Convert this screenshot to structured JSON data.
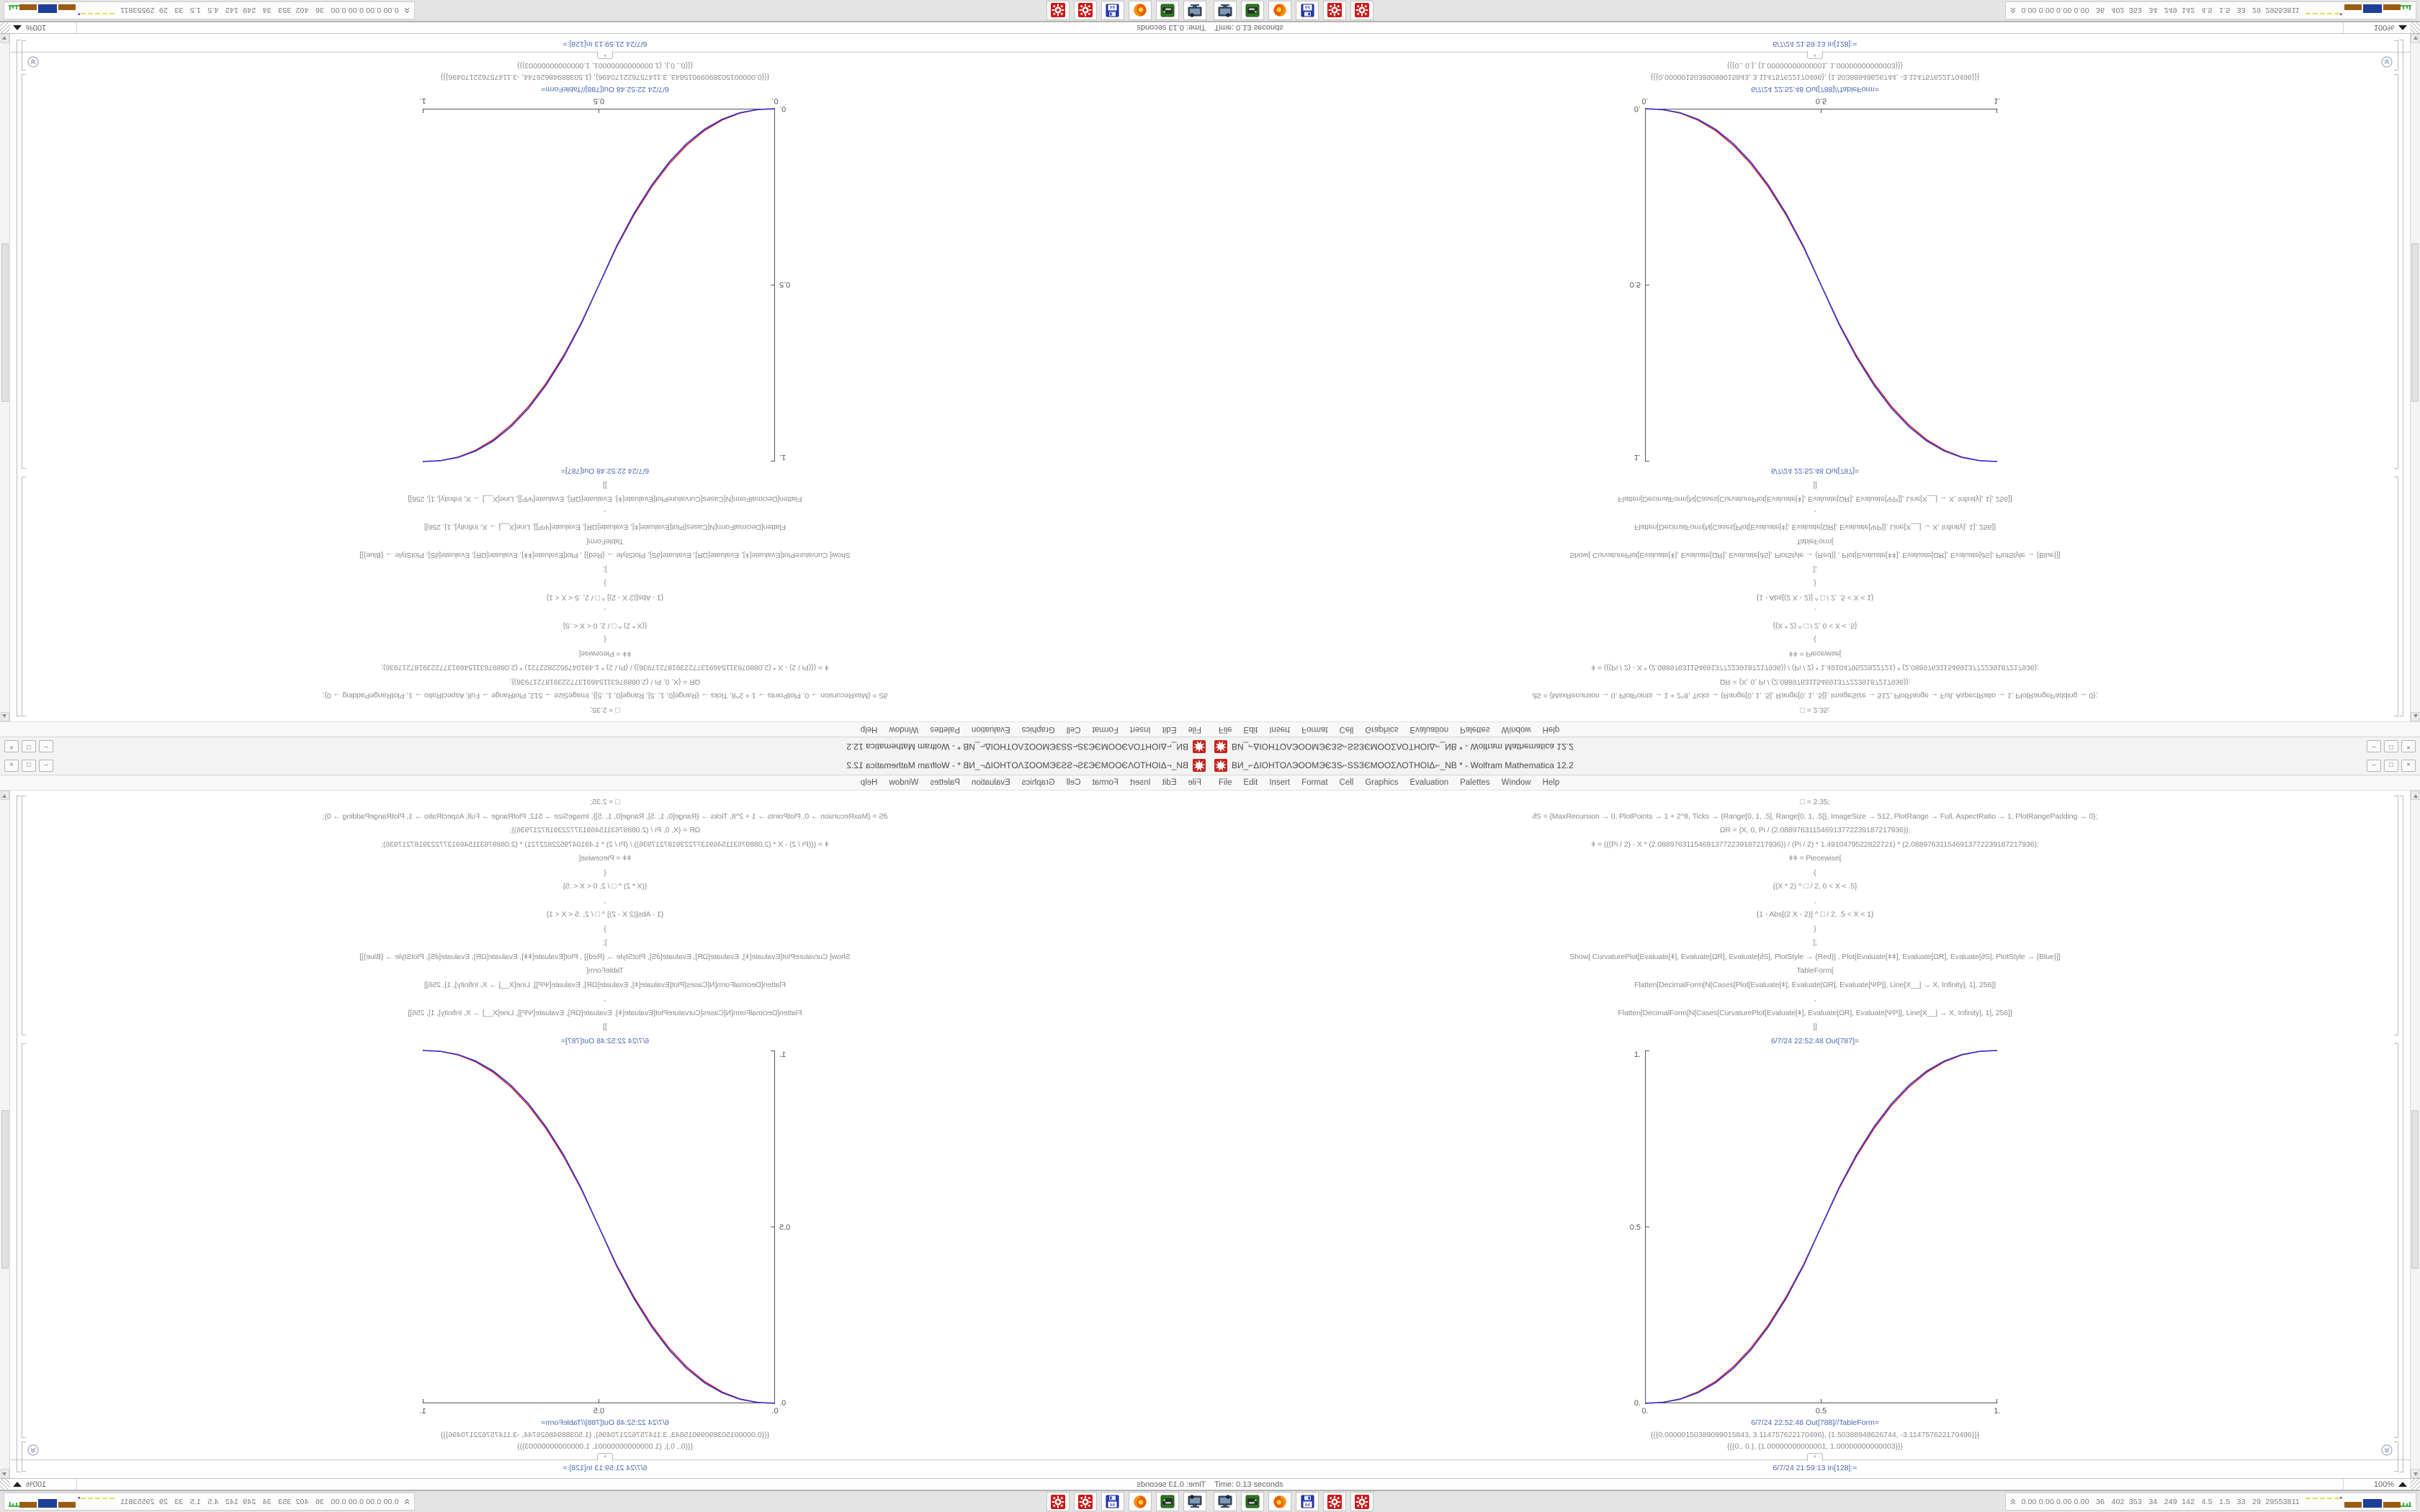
{
  "window": {
    "title": "ВИ_⌐ΔΙΟΗΤΟΛЭΟΟΜЭЄЗЅ⌐ЅЅЗЄΜΟΟΣΛΟΤΗΟΙΔ⌐_NB * - Wolfram Mathematica 12.2",
    "menu": [
      "File",
      "Edit",
      "Insert",
      "Format",
      "Cell",
      "Graphics",
      "Evaluation",
      "Palettes",
      "Window",
      "Help"
    ],
    "buttons": {
      "minimize": "–",
      "maximize": "□",
      "close": "×"
    },
    "status_time": "Time: 0.13 seconds",
    "zoom_level": "100%"
  },
  "notebook": {
    "input_lines": [
      "□ = 2.35;",
      "∂S = {MaxRecursion → 0, PlotPoints → 1 + 2^8, Ticks → {Range[0, 1, .5], Range[0, 1, .5]}, ImageSize → 512, PlotRange → Full, AspectRatio → 1, PlotRangePadding → 0};",
      "ΩR = {X, 0, Pi / (2.088976311546913772239187217936)};",
      "ǂ = (((Pi / 2) - X * (2.088976311546913772239187217936)) / (Pi / 2) * 1.4910479522822721) * (2.088976311546913772239187217936);",
      "ǂǂ = Piecewise[",
      "{",
      "{(X * 2) ^ □ / 2, 0 < X < .5}",
      ",",
      "{1 - Abs[(2 X - 2)] ^ □ / 2, .5 < X < 1}",
      "}",
      "];",
      "Show[  CurvaturePlot[Evaluate[ǂ], Evaluate[ΩR], Evaluate[∂S], PlotStyle → {Red}]  ,  Plot[Evaluate[ǂǂ], Evaluate[ΩR], Evaluate[∂S], PlotStyle → {Blue}]]",
      "TableForm[",
      "Flatten[DecimalForm[N[Cases[Plot[Evaluate[ǂ], Evaluate[ΩR], Evaluate[ΨΡ]], Line[X__] → X, Infinity], 1], 256]]",
      ",",
      "Flatten[DecimalForm[N[Cases[CurvaturePlot[Evaluate[ǂ], Evaluate[ΩR], Evaluate[ΨΡ]], Line[X__] → X, Infinity], 1], 256]]",
      "]]"
    ],
    "out_label_plot": "6/7/24 22:52:48 Out[787]=",
    "out_label_table": "6/7/24 22:52:48 Out[788]//TableForm=",
    "table_rows": [
      "{{{0.00000150389099015843, 3.114757622170496}, {1.50388948626744, -3.114757622170496}}}",
      "{{{0., 0.}, {1.00000000000001, 1.00000000000003}}}"
    ],
    "insert_plus": "+",
    "next_in_label": "6/7/24 21:59:13 In[128]:="
  },
  "taskbar": {
    "icons": [
      "screenshot-monitor",
      "disk-drive",
      "firefox",
      "floppy-64",
      "kernel-gear",
      "kernel-gear"
    ],
    "tray_stats": "0.00 0.00 0.00 0.00   36   402  353   34   249  142   4.5   1.5   33   29  29553811"
  },
  "colors": {
    "red_curve": "#d42626",
    "blue_curve": "#2c2cd4",
    "cell_label_blue": "#4a68b4",
    "mathematica_red": "#c4241d"
  },
  "chart_data": {
    "type": "line",
    "title": "",
    "xlabel": "",
    "ylabel": "",
    "xlim": [
      0,
      1
    ],
    "ylim": [
      0,
      1
    ],
    "grid": false,
    "legend": "none",
    "xtick_labels": [
      "0.",
      "0.5",
      "1."
    ],
    "ytick_labels": [
      "0.",
      "0.5",
      "1."
    ],
    "x": [
      0,
      0.05,
      0.1,
      0.15,
      0.2,
      0.25,
      0.3,
      0.35,
      0.4,
      0.45,
      0.5,
      0.55,
      0.6,
      0.65,
      0.7,
      0.75,
      0.8,
      0.85,
      0.9,
      0.95,
      1
    ],
    "series": [
      {
        "name": "CurvaturePlot (Red)",
        "color": "#d42626",
        "y": [
          0,
          0.0026,
          0.0127,
          0.0321,
          0.0619,
          0.103,
          0.156,
          0.2217,
          0.3007,
          0.3932,
          0.5,
          0.6068,
          0.6993,
          0.7783,
          0.844,
          0.897,
          0.9381,
          0.9679,
          0.9873,
          0.9974,
          1
        ]
      },
      {
        "name": "Plot (Blue)",
        "color": "#2c2cd4",
        "y": [
          0,
          0.0022,
          0.0114,
          0.0295,
          0.058,
          0.0981,
          0.1505,
          0.2162,
          0.2959,
          0.3903,
          0.5,
          0.6097,
          0.7041,
          0.7838,
          0.8495,
          0.9019,
          0.942,
          0.9705,
          0.9886,
          0.9978,
          1
        ]
      }
    ]
  }
}
